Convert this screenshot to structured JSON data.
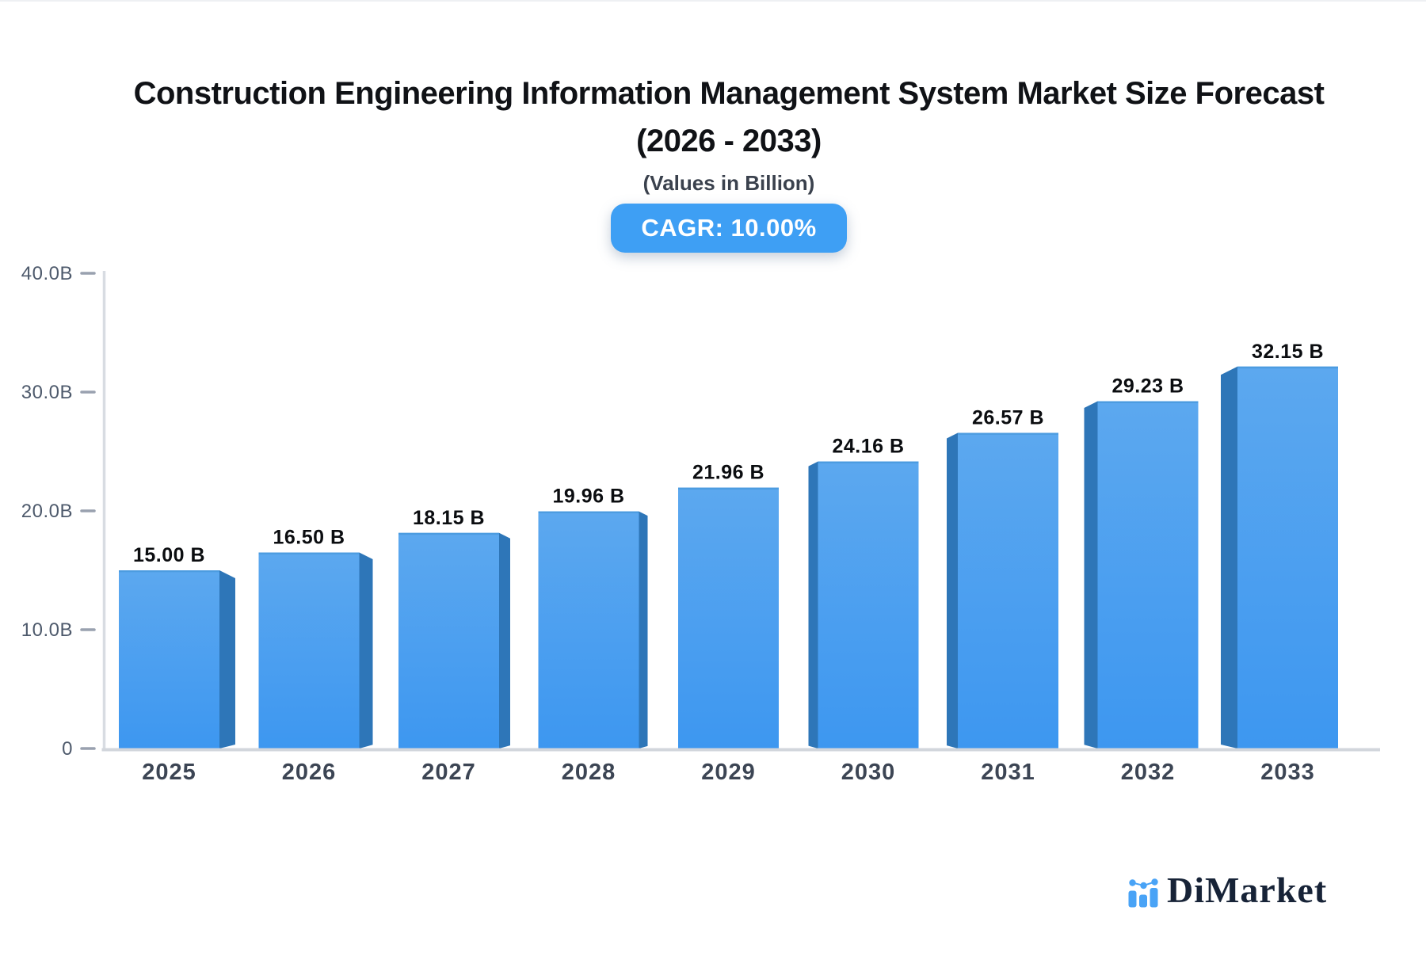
{
  "header": {
    "title_line1": "Construction Engineering Information Management System Market Size Forecast",
    "title_line2": "(2026 - 2033)",
    "subtitle": "(Values in Billion)",
    "cagr_badge": "CAGR: 10.00%"
  },
  "chart_data": {
    "type": "bar",
    "title": "Construction Engineering Information Management System Market Size Forecast (2026 - 2033)",
    "subtitle": "(Values in Billion)",
    "cagr_percent": "10.00%",
    "categories": [
      "2025",
      "2026",
      "2027",
      "2028",
      "2029",
      "2030",
      "2031",
      "2032",
      "2033"
    ],
    "values": [
      15.0,
      16.5,
      18.15,
      19.96,
      21.96,
      24.16,
      26.57,
      29.23,
      32.15
    ],
    "value_labels": [
      "15.00 B",
      "16.50 B",
      "18.15 B",
      "19.96 B",
      "21.96 B",
      "24.16 B",
      "26.57 B",
      "29.23 B",
      "32.15 B"
    ],
    "ytick_values": [
      0,
      10,
      20,
      30,
      40
    ],
    "ytick_labels": [
      "0",
      "10.0B",
      "20.0B",
      "30.0B",
      "40.0B"
    ],
    "ylim": [
      0,
      40
    ],
    "xlabel": "",
    "ylabel": "",
    "grid": "off",
    "legend": "none",
    "bar_style": "3d-perspective, vanishing point at center bar"
  },
  "logo": {
    "brand": "DiMarket"
  },
  "colors": {
    "bar_front_top": "#5ca8ef",
    "bar_front_bottom": "#3d97f0",
    "bar_side": "#2e76b8",
    "bar_top_edge": "#4c9ce0",
    "badge_bg": "#3e9ff4",
    "badge_text": "#ffffff",
    "axis_line": "#d8dce2",
    "baseline": "#d2d6dc",
    "tick_dash": "#99a1af",
    "tick_text": "#4e5a6c",
    "year_text": "#3c4554",
    "value_text": "#0b0d10",
    "title_text": "#101216",
    "subtitle_text": "#3a414d",
    "logo_text": "#172337",
    "logo_icon": "#49a3f6"
  }
}
